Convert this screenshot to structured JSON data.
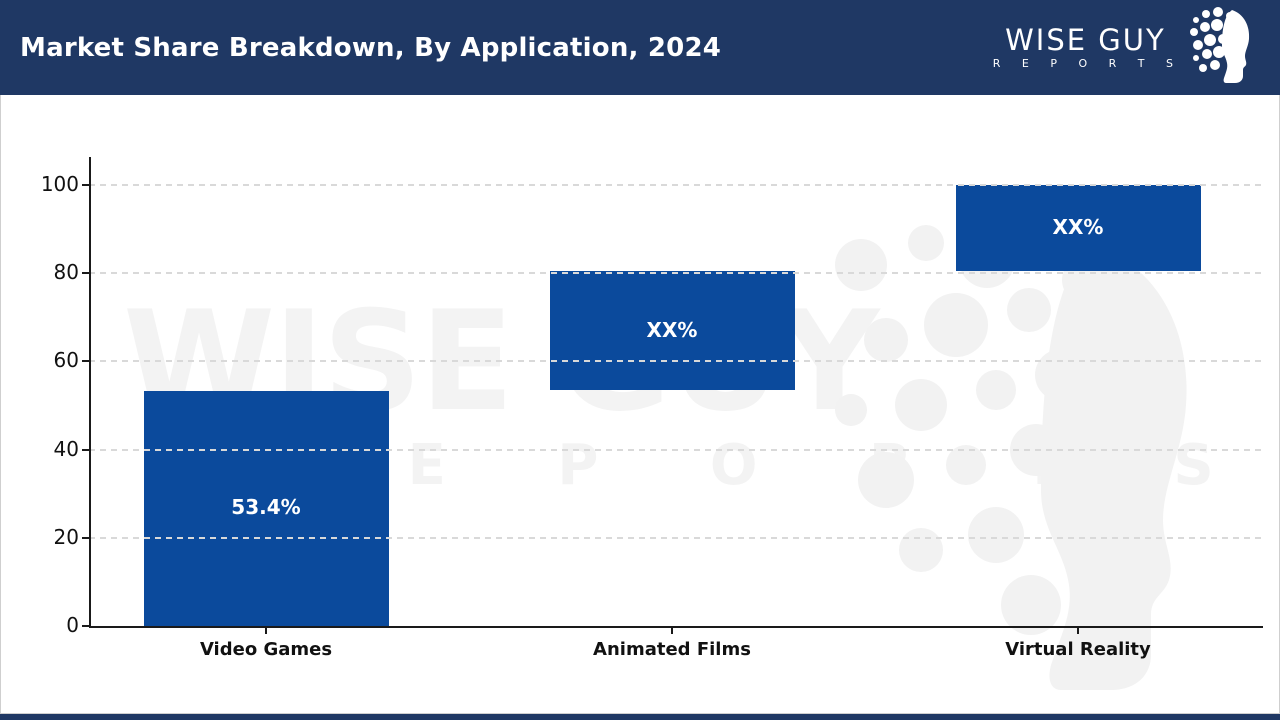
{
  "header": {
    "title": "Market Share Breakdown, By Application, 2024",
    "logo": {
      "wordmark": "WISE GUY",
      "sub": "R E P O R T S"
    }
  },
  "watermark": {
    "wordmark": "WISE GUY",
    "sub": "R E P O R T S"
  },
  "chart_data": {
    "type": "bar",
    "variant": "waterfall",
    "title": "Market Share Breakdown, By Application, 2024",
    "categories": [
      "Video Games",
      "Animated Films",
      "Virtual Reality"
    ],
    "segments": [
      {
        "category": "Video Games",
        "start": 0,
        "end": 53.4,
        "label": "53.4%"
      },
      {
        "category": "Animated Films",
        "start": 53.4,
        "end": 80.6,
        "label": "XX%"
      },
      {
        "category": "Virtual Reality",
        "start": 80.6,
        "end": 100,
        "label": "XX%"
      }
    ],
    "yticks": [
      0,
      20,
      40,
      60,
      80,
      100
    ],
    "ylim": [
      0,
      106
    ],
    "xlabel": "",
    "ylabel": "",
    "legend": "none",
    "grid": {
      "axis": "y",
      "style": "dashed",
      "color": "#d9d9d9"
    },
    "bar_color": "#0b4a9c",
    "bar_label_color": "#ffffff"
  },
  "colors": {
    "header_bg": "#1f3864",
    "footer_bg": "#1f3864",
    "panel_border": "#cfcfcf",
    "axis": "#1a1a1a",
    "tick_text": "#111111",
    "watermark": "#f3f3f3"
  }
}
